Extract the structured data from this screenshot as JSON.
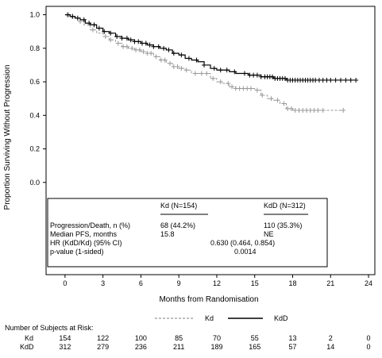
{
  "chart_data": {
    "type": "line",
    "title": "",
    "xlabel": "Months from Randomisation",
    "ylabel": "Proportion Surviving Without Progression",
    "xlim": [
      -1.5,
      24.5
    ],
    "ylim": [
      -0.55,
      1.05
    ],
    "x_ticks": [
      0,
      3,
      6,
      9,
      12,
      15,
      18,
      21,
      24
    ],
    "y_ticks": [
      "0.0",
      "0.2",
      "0.4",
      "0.6",
      "0.8",
      "1.0"
    ],
    "y_tick_values": [
      0.0,
      0.2,
      0.4,
      0.6,
      0.8,
      1.0
    ],
    "legend_position": "bottom-center",
    "series": [
      {
        "name": "Kd",
        "style": "dashed",
        "color": "#999999",
        "steps": [
          [
            0,
            1.0
          ],
          [
            0.5,
            0.98
          ],
          [
            1.0,
            0.96
          ],
          [
            1.5,
            0.94
          ],
          [
            2.0,
            0.91
          ],
          [
            2.5,
            0.89
          ],
          [
            3.0,
            0.87
          ],
          [
            3.5,
            0.85
          ],
          [
            4.0,
            0.83
          ],
          [
            4.5,
            0.81
          ],
          [
            5.0,
            0.8
          ],
          [
            5.5,
            0.79
          ],
          [
            6.0,
            0.78
          ],
          [
            6.5,
            0.77
          ],
          [
            7.0,
            0.75
          ],
          [
            7.5,
            0.73
          ],
          [
            8.0,
            0.71
          ],
          [
            8.5,
            0.69
          ],
          [
            9.0,
            0.68
          ],
          [
            9.5,
            0.67
          ],
          [
            10.0,
            0.65
          ],
          [
            10.5,
            0.65
          ],
          [
            11.0,
            0.65
          ],
          [
            11.5,
            0.62
          ],
          [
            12.0,
            0.6
          ],
          [
            12.5,
            0.59
          ],
          [
            13.0,
            0.57
          ],
          [
            13.5,
            0.56
          ],
          [
            14.0,
            0.56
          ],
          [
            14.5,
            0.56
          ],
          [
            15.0,
            0.55
          ],
          [
            15.5,
            0.52
          ],
          [
            16.0,
            0.5
          ],
          [
            16.5,
            0.49
          ],
          [
            17.0,
            0.47
          ],
          [
            17.5,
            0.44
          ],
          [
            18.0,
            0.43
          ],
          [
            18.5,
            0.43
          ],
          [
            19.0,
            0.43
          ],
          [
            20.0,
            0.43
          ],
          [
            21.0,
            0.43
          ],
          [
            22.0,
            0.43
          ]
        ],
        "censor": [
          0.3,
          1.2,
          2.2,
          3.2,
          3.6,
          4.2,
          4.6,
          4.9,
          5.3,
          5.6,
          5.9,
          6.2,
          6.5,
          6.8,
          7.2,
          7.6,
          7.9,
          8.3,
          8.6,
          8.9,
          9.2,
          9.6,
          10.3,
          10.8,
          11.2,
          11.7,
          12.3,
          12.9,
          13.2,
          13.5,
          13.8,
          14.1,
          14.4,
          14.7,
          15.2,
          15.6,
          16.3,
          16.8,
          17.3,
          17.6,
          17.9,
          18.2,
          18.5,
          18.8,
          19.1,
          19.4,
          19.7,
          20.0,
          20.4,
          22.0
        ]
      },
      {
        "name": "KdD",
        "style": "solid",
        "color": "#000000",
        "steps": [
          [
            0,
            1.0
          ],
          [
            0.4,
            0.99
          ],
          [
            0.8,
            0.98
          ],
          [
            1.2,
            0.97
          ],
          [
            1.6,
            0.95
          ],
          [
            2.0,
            0.94
          ],
          [
            2.5,
            0.92
          ],
          [
            3.0,
            0.9
          ],
          [
            3.5,
            0.89
          ],
          [
            4.0,
            0.87
          ],
          [
            4.5,
            0.86
          ],
          [
            5.0,
            0.85
          ],
          [
            5.5,
            0.84
          ],
          [
            6.0,
            0.83
          ],
          [
            6.5,
            0.82
          ],
          [
            7.0,
            0.81
          ],
          [
            7.5,
            0.8
          ],
          [
            8.0,
            0.79
          ],
          [
            8.5,
            0.77
          ],
          [
            9.0,
            0.76
          ],
          [
            9.5,
            0.74
          ],
          [
            10.0,
            0.73
          ],
          [
            10.5,
            0.72
          ],
          [
            11.0,
            0.7
          ],
          [
            11.5,
            0.68
          ],
          [
            12.0,
            0.67
          ],
          [
            12.5,
            0.67
          ],
          [
            13.0,
            0.66
          ],
          [
            13.5,
            0.65
          ],
          [
            14.0,
            0.65
          ],
          [
            14.5,
            0.64
          ],
          [
            15.0,
            0.64
          ],
          [
            15.5,
            0.63
          ],
          [
            16.0,
            0.63
          ],
          [
            16.5,
            0.62
          ],
          [
            17.0,
            0.62
          ],
          [
            17.5,
            0.61
          ],
          [
            18.0,
            0.61
          ],
          [
            19.0,
            0.61
          ],
          [
            20.0,
            0.61
          ],
          [
            21.0,
            0.61
          ],
          [
            22.0,
            0.61
          ],
          [
            23.0,
            0.61
          ]
        ],
        "censor": [
          0.2,
          0.6,
          1.0,
          1.5,
          1.9,
          2.3,
          2.7,
          3.1,
          3.6,
          4.1,
          4.5,
          4.9,
          5.2,
          5.5,
          5.8,
          6.1,
          6.4,
          6.7,
          7.0,
          7.4,
          7.8,
          8.2,
          8.6,
          9.2,
          9.8,
          10.4,
          11.0,
          11.8,
          12.3,
          12.8,
          13.4,
          14.2,
          14.6,
          14.9,
          15.2,
          15.5,
          15.8,
          16.0,
          16.2,
          16.4,
          16.6,
          16.8,
          17.0,
          17.2,
          17.4,
          17.6,
          17.8,
          18.0,
          18.2,
          18.4,
          18.6,
          18.8,
          19.0,
          19.2,
          19.4,
          19.6,
          19.8,
          20.1,
          20.4,
          20.7,
          21.0,
          21.4,
          21.8,
          22.2,
          22.6,
          23.0
        ]
      }
    ],
    "inset_table": {
      "headers": [
        "Kd (N=154)",
        "KdD (N=312)"
      ],
      "rows": [
        {
          "label": "Progression/Death, n (%)",
          "kd": "68 (44.2%)",
          "kdd": "110 (35.3%)"
        },
        {
          "label": "Median PFS, months",
          "kd": "15.8",
          "kdd": "NE"
        }
      ],
      "hr_label": "HR (KdD/Kd) (95% CI)",
      "hr_value": "0.630 (0.464, 0.854)",
      "p_label": "p-value (1-sided)",
      "p_value": "0.0014"
    },
    "risk_table": {
      "title": "Number of Subjects at Risk:",
      "rows": [
        {
          "label": "Kd",
          "values": [
            "154",
            "122",
            "100",
            "85",
            "70",
            "55",
            "13",
            "2",
            "0"
          ]
        },
        {
          "label": "KdD",
          "values": [
            "312",
            "279",
            "236",
            "211",
            "189",
            "165",
            "57",
            "14",
            "0"
          ]
        }
      ]
    }
  }
}
